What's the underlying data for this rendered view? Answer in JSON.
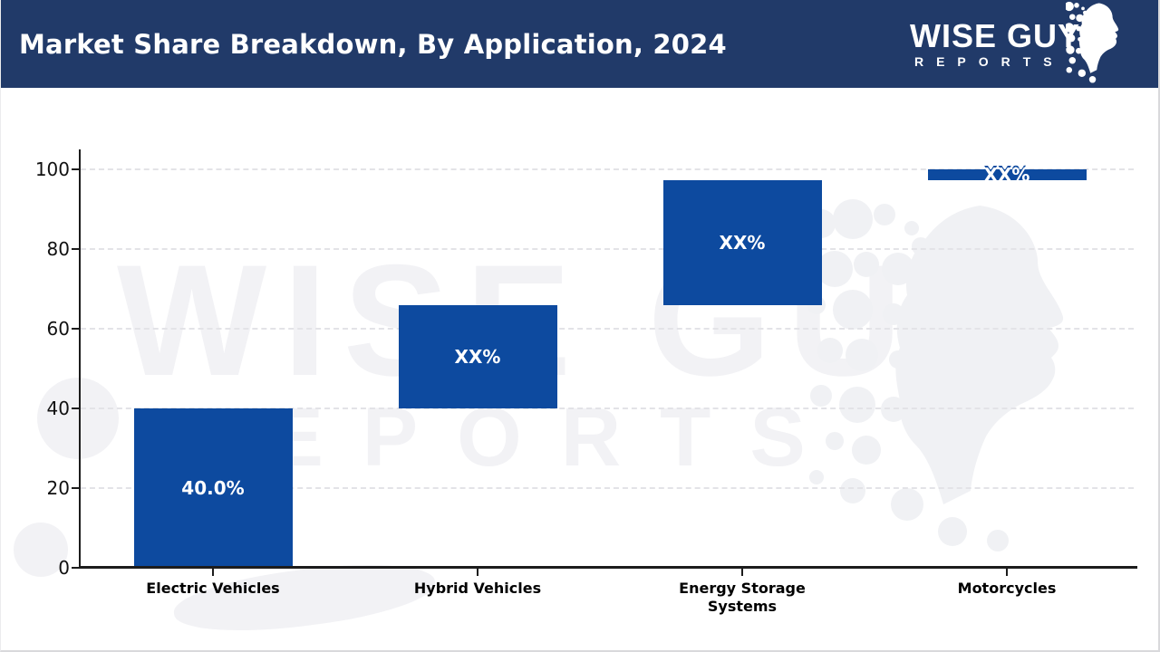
{
  "header": {
    "title": "Market Share Breakdown, By Application, 2024",
    "logo": {
      "line1": "WISE GUY",
      "line2": "REPORTS"
    }
  },
  "watermark": {
    "line1": "WISE GUY",
    "line2": "REPORTS"
  },
  "chart_data": {
    "type": "bar",
    "subtype": "waterfall",
    "title": "Market Share Breakdown, By Application, 2024",
    "categories": [
      "Electric Vehicles",
      "Hybrid Vehicles",
      "Energy Storage Systems",
      "Motorcycles"
    ],
    "series": [
      {
        "category": "Electric Vehicles",
        "start": 0,
        "end": 40,
        "value": 40.0,
        "label": "40.0%"
      },
      {
        "category": "Hybrid Vehicles",
        "start": 40,
        "end": 65.8,
        "value": 25.8,
        "label": "XX%"
      },
      {
        "category": "Energy Storage Systems",
        "start": 65.8,
        "end": 97.2,
        "value": 31.4,
        "label": "XX%"
      },
      {
        "category": "Motorcycles",
        "start": 97.2,
        "end": 100,
        "value": 2.8,
        "label": "XX%"
      }
    ],
    "yticks": [
      0,
      20,
      40,
      60,
      80,
      100
    ],
    "ylim": [
      0,
      105
    ],
    "xlabel": "",
    "ylabel": "",
    "grid": "horizontal-dashed",
    "legend": "none",
    "colors": {
      "bar": "#0d4a9f",
      "bar_label": "#ffffff",
      "axis": "#1c1c1c",
      "grid": "#e3e3e7",
      "header_bg": "#213a69",
      "header_text": "#ffffff",
      "watermark": "#f2f2f5"
    }
  }
}
